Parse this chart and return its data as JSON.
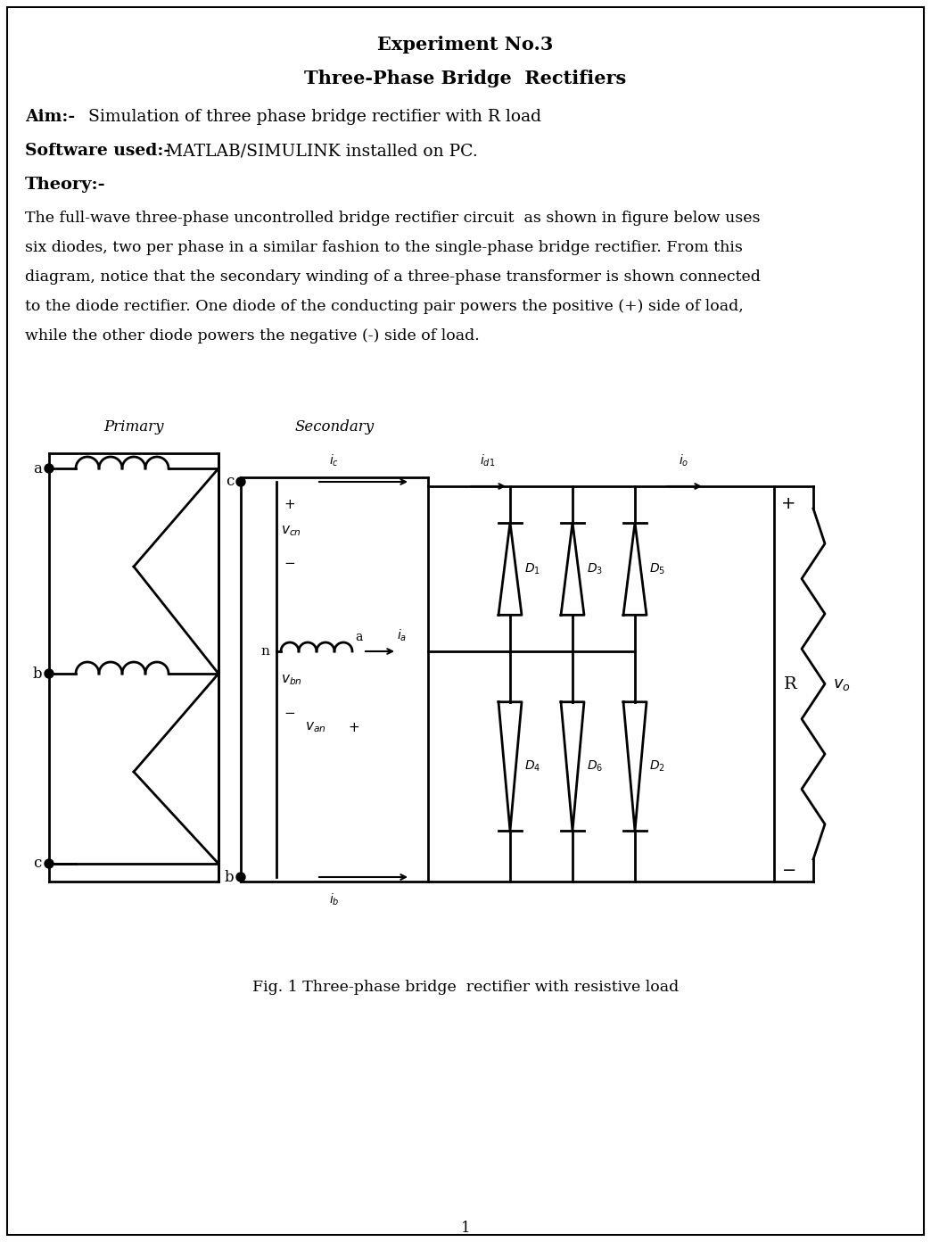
{
  "title1": "Experiment No.3",
  "title2": "Three-Phase Bridge  Rectifiers",
  "aim_bold": "Aim:-",
  "aim_text": " Simulation of three phase bridge rectifier with R load",
  "software_bold": "Software used:-",
  "software_text": " MATLAB/SIMULINK installed on PC.",
  "theory_bold": "Theory:-",
  "theory_lines": [
    "The full-wave three-phase uncontrolled bridge rectifier circuit  as shown in figure below uses",
    "six diodes, two per phase in a similar fashion to the single-phase bridge rectifier. From this",
    "diagram, notice that the secondary winding of a three-phase transformer is shown connected",
    "to the diode rectifier. One diode of the conducting pair powers the positive (+) side of load,",
    "while the other diode powers the negative (-) side of load."
  ],
  "fig_caption": "Fig. 1 Three-phase bridge  rectifier with resistive load",
  "page_number": "1",
  "bg_color": "#ffffff",
  "text_color": "#000000"
}
